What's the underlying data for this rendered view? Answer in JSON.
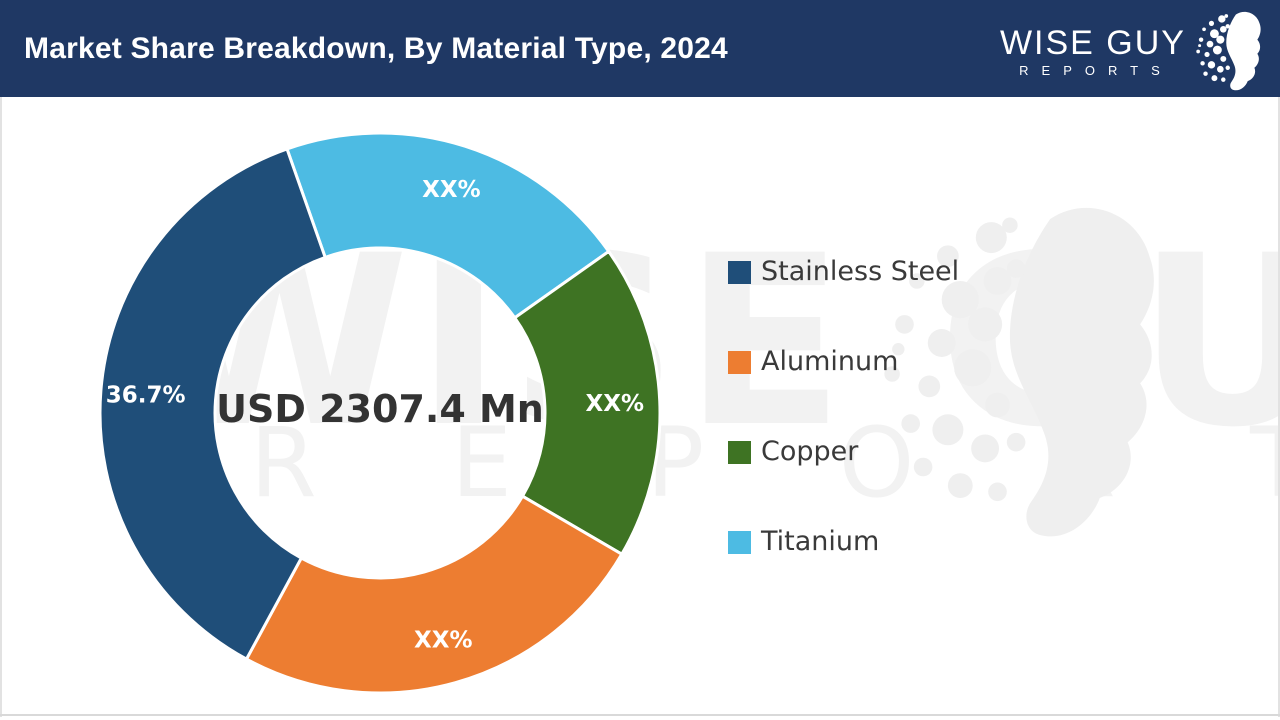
{
  "header": {
    "title": "Market Share Breakdown, By Material Type, 2024",
    "bg_color": "#1F3864",
    "logo": {
      "brand_top": "WISE GUY",
      "brand_bottom": "REPORTS"
    }
  },
  "watermark": {
    "text_top": "WISE GUY",
    "text_bottom": "R E P O R T S"
  },
  "chart_data": {
    "type": "pie",
    "subtype": "donut",
    "title": "Market Share Breakdown, By Material Type, 2024",
    "center_label": "USD 2307.4 Mn",
    "units": "percent share",
    "start_angle_deg": -19.4,
    "legend_position": "right",
    "segments": [
      {
        "name": "Titanium",
        "value": 20.6,
        "label": "XX%",
        "color": "#4DBBE3"
      },
      {
        "name": "Copper",
        "value": 18.2,
        "label": "XX%",
        "color": "#3E7323"
      },
      {
        "name": "Aluminum",
        "value": 24.5,
        "label": "XX%",
        "color": "#ED7D31"
      },
      {
        "name": "Stainless Steel",
        "value": 36.7,
        "label": "36.7%",
        "color": "#1F4E79"
      }
    ],
    "legend": [
      {
        "label": "Stainless Steel",
        "color": "#1F4E79"
      },
      {
        "label": "Aluminum",
        "color": "#ED7D31"
      },
      {
        "label": "Copper",
        "color": "#3E7323"
      },
      {
        "label": "Titanium",
        "color": "#4DBBE3"
      }
    ]
  }
}
